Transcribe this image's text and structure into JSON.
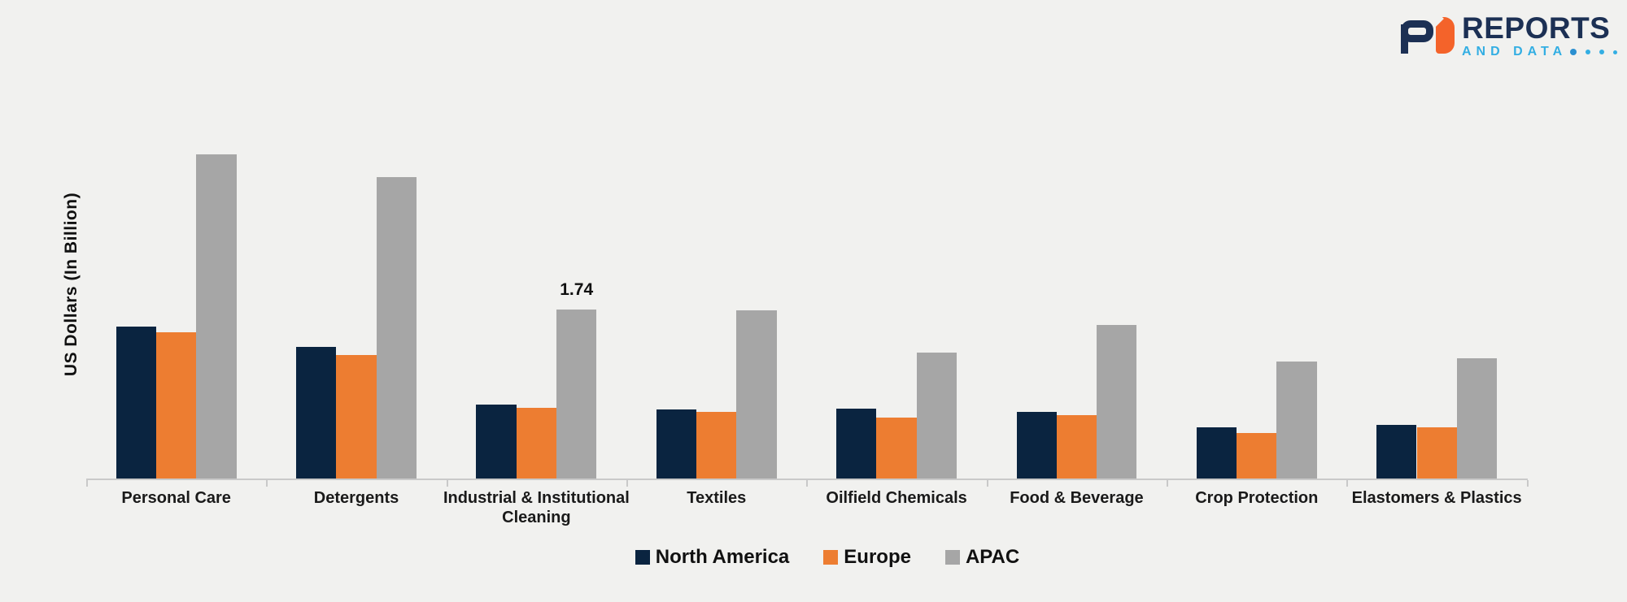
{
  "page": {
    "background": "#f1f1ef"
  },
  "logo": {
    "brand_name": "REPORTS",
    "brand_tagline": "AND DATA",
    "colors": {
      "navy": "#1c3054",
      "orange": "#f4632a",
      "light_blue": "#33aee3"
    }
  },
  "chart_data": {
    "type": "bar",
    "title": "",
    "xlabel": "",
    "ylabel": "US Dollars  (In Billion)",
    "categories": [
      "Personal Care",
      "Detergents",
      "Industrial & Institutional Cleaning",
      "Textiles",
      "Oilfield Chemicals",
      "Food & Beverage",
      "Crop Protection",
      "Elastomers & Plastics"
    ],
    "series": [
      {
        "name": "North America",
        "color": "#0a2440",
        "values": [
          1.57,
          1.36,
          0.76,
          0.71,
          0.72,
          0.69,
          0.53,
          0.55
        ]
      },
      {
        "name": "Europe",
        "color": "#ed7d31",
        "values": [
          1.51,
          1.27,
          0.73,
          0.69,
          0.63,
          0.65,
          0.47,
          0.53
        ]
      },
      {
        "name": "APAC",
        "color": "#a6a6a6",
        "values": [
          3.34,
          3.11,
          1.74,
          1.73,
          1.3,
          1.58,
          1.21,
          1.24
        ]
      }
    ],
    "annotations": [
      {
        "category_index": 2,
        "series": "APAC",
        "text": "1.74"
      }
    ],
    "ylim": [
      0,
      3.6
    ],
    "grid": false,
    "y_axis_ticks_visible": false,
    "legend_position": "bottom",
    "axis_line_color": "#c9c9c9"
  }
}
